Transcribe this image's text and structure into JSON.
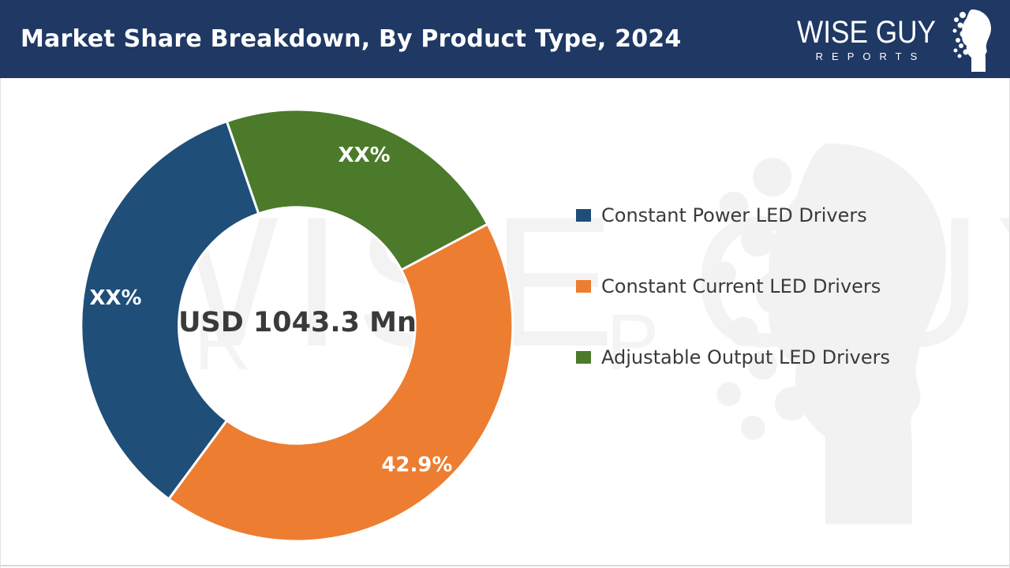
{
  "header": {
    "title": "Market Share Breakdown, By Product Type, 2024",
    "background_color": "#1f3864",
    "logo": {
      "line1": "WISE GUY",
      "line2": "REPORTS"
    }
  },
  "chart_data": {
    "type": "pie",
    "subtype": "donut",
    "title": "Market Share Breakdown, By Product Type, 2024",
    "center_label": "USD 1043.3 Mn",
    "start_angle_deg": -19,
    "legend_position": "right",
    "segments": [
      {
        "name": "Adjustable Output LED Drivers",
        "value_pct": 22.5,
        "display_label": "XX%",
        "color": "#4b7a2b"
      },
      {
        "name": "Constant Current LED Drivers",
        "value_pct": 42.9,
        "display_label": "42.9%",
        "color": "#ed7d31"
      },
      {
        "name": "Constant Power LED Drivers",
        "value_pct": 34.6,
        "display_label": "XX%",
        "color": "#1f4e79"
      }
    ]
  },
  "legend": {
    "items": [
      {
        "label": "Constant Power LED Drivers",
        "color": "#1f4e79"
      },
      {
        "label": "Constant Current LED Drivers",
        "color": "#ed7d31"
      },
      {
        "label": "Adjustable Output LED Drivers",
        "color": "#4b7a2b"
      }
    ]
  },
  "watermark": {
    "line1": "WISE GUY",
    "line2": "R E P O R T S"
  }
}
